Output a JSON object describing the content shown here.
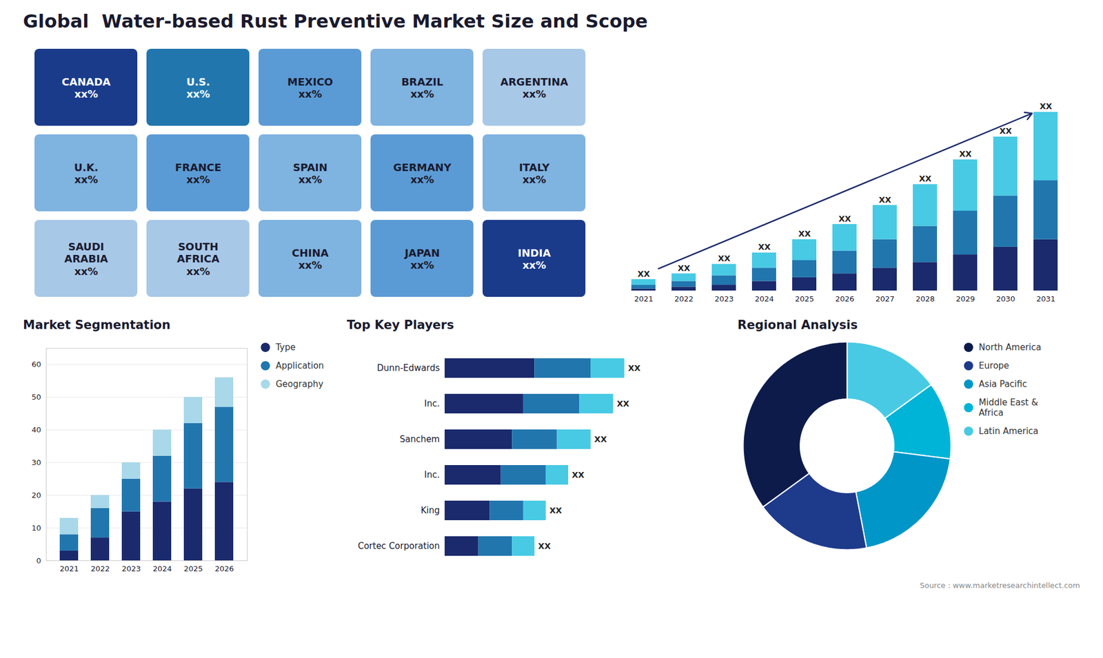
{
  "title": "Global  Water-based Rust Preventive Market Size and Scope",
  "annotations": [
    "Source : www.marketresearchintellect.com"
  ],
  "chart_data": [
    {
      "type": "map",
      "categories": [
        "CANADA",
        "U.S.",
        "MEXICO",
        "BRAZIL",
        "ARGENTINA",
        "U.K.",
        "FRANCE",
        "SPAIN",
        "GERMANY",
        "ITALY",
        "SAUDI\nARABIA",
        "SOUTH\nAFRICA",
        "CHINA",
        "JAPAN",
        "INDIA"
      ],
      "annotations": [
        "xx%",
        "xx%",
        "xx%",
        "xx%",
        "xx%",
        "xx%",
        "xx%",
        "xx%",
        "xx%",
        "xx%",
        "xx%",
        "xx%",
        "xx%",
        "xx%",
        "xx%"
      ],
      "colors": [
        "#1a3a8a",
        "#2176ae",
        "#5b9bd5",
        "#7fb3e0",
        "#a8c8e8",
        "#7fb3e0",
        "#5b9bd5",
        "#7fb3e0",
        "#5b9bd5",
        "#7fb3e0",
        "#a8c8e8",
        "#a8c8e8",
        "#7fb3e0",
        "#5b9bd5",
        "#1a3a8a"
      ],
      "tick_labels": false
    },
    {
      "type": "bar",
      "stacked": true,
      "categories": [
        "2021",
        "2022",
        "2023",
        "2024",
        "2025",
        "2026",
        "2027",
        "2028",
        "2029",
        "2030",
        "2031"
      ],
      "series": [
        {
          "color": "#1a2a6c",
          "values": [
            1,
            2,
            3,
            5,
            7,
            9,
            12,
            15,
            19,
            23,
            27
          ]
        },
        {
          "color": "#2176ae",
          "values": [
            2,
            3,
            5,
            7,
            9,
            12,
            15,
            19,
            23,
            27,
            31
          ]
        },
        {
          "color": "#48cae4",
          "values": [
            3,
            4,
            6,
            8,
            11,
            14,
            18,
            22,
            27,
            31,
            36
          ]
        }
      ],
      "ylim": [
        0,
        126.9
      ],
      "tick_labels": "x",
      "annotations": [
        "XX",
        "XX",
        "XX",
        "XX",
        "XX",
        "XX",
        "XX",
        "XX",
        "XX",
        "XX",
        "XX"
      ]
    },
    {
      "type": "bar",
      "stacked": true,
      "title": "Market Segmentation",
      "categories": [
        "2021",
        "2022",
        "2023",
        "2024",
        "2025",
        "2026"
      ],
      "series": [
        {
          "name": "Type",
          "color": "#1a2a6c",
          "values": [
            3,
            7,
            15,
            18,
            22,
            24
          ]
        },
        {
          "name": "Application",
          "color": "#2176ae",
          "values": [
            5,
            9,
            10,
            14,
            20,
            23
          ]
        },
        {
          "name": "Geography",
          "color": "#a8d8ea",
          "values": [
            5,
            4,
            5,
            8,
            8,
            9
          ]
        }
      ],
      "ylim": [
        0,
        65
      ],
      "yticks": [
        0,
        10,
        20,
        30,
        40,
        50,
        60
      ],
      "grid": true,
      "legend": "right"
    },
    {
      "type": "bar",
      "stacked": true,
      "orientation": "horizontal",
      "title": "Top Key Players",
      "categories": [
        "Dunn-Edwards",
        "Inc.",
        "Sanchem",
        "Inc.",
        "King",
        "Cortec Corporation"
      ],
      "series": [
        {
          "color": "#1a2a6c",
          "values": [
            8,
            7,
            6,
            5,
            4,
            3
          ]
        },
        {
          "color": "#2176ae",
          "values": [
            5,
            5,
            4,
            4,
            3,
            3
          ]
        },
        {
          "color": "#48cae4",
          "values": [
            3,
            3,
            3,
            2,
            2,
            2
          ]
        }
      ],
      "xlim": [
        0,
        22
      ],
      "tick_labels": "y",
      "annotations": [
        "XX",
        "XX",
        "XX",
        "XX",
        "XX",
        "XX"
      ]
    },
    {
      "type": "pie",
      "title": "Regional Analysis",
      "categories": [
        "Latin America",
        "Middle East &\nAfrica",
        "Asia Pacific",
        "Europe",
        "North America"
      ],
      "values": [
        15,
        12,
        20,
        18,
        35
      ],
      "colors": [
        "#48cae4",
        "#00b4d8",
        "#0096c7",
        "#1e3a8a",
        "#0d1b4b"
      ],
      "legend": "right"
    }
  ]
}
